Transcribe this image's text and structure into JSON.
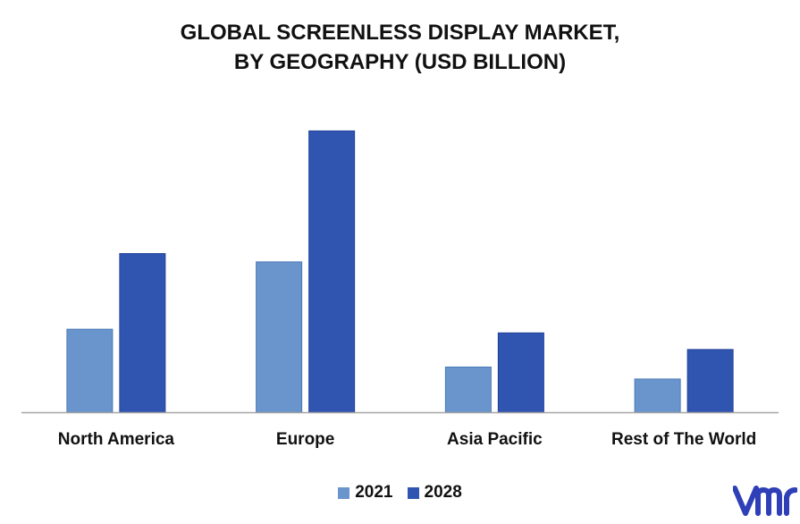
{
  "chart_data": {
    "type": "bar",
    "title_lines": [
      "GLOBAL SCREENLESS DISPLAY MARKET,",
      "BY GEOGRAPHY (USD BILLION)"
    ],
    "categories": [
      "North America",
      "Europe",
      "Asia Pacific",
      "Rest of The World"
    ],
    "series": [
      {
        "name": "2021",
        "color": "#6a95cc",
        "values": [
          0.9,
          1.63,
          0.49,
          0.36
        ]
      },
      {
        "name": "2028",
        "color": "#2f55b1",
        "values": [
          1.72,
          3.05,
          0.86,
          0.68
        ]
      }
    ],
    "ylim": [
      0,
      3.5
    ],
    "grid": false,
    "legend_position": "bottom"
  },
  "logo": {
    "name": "vmr-logo-icon",
    "color": "#2f3fb8"
  }
}
